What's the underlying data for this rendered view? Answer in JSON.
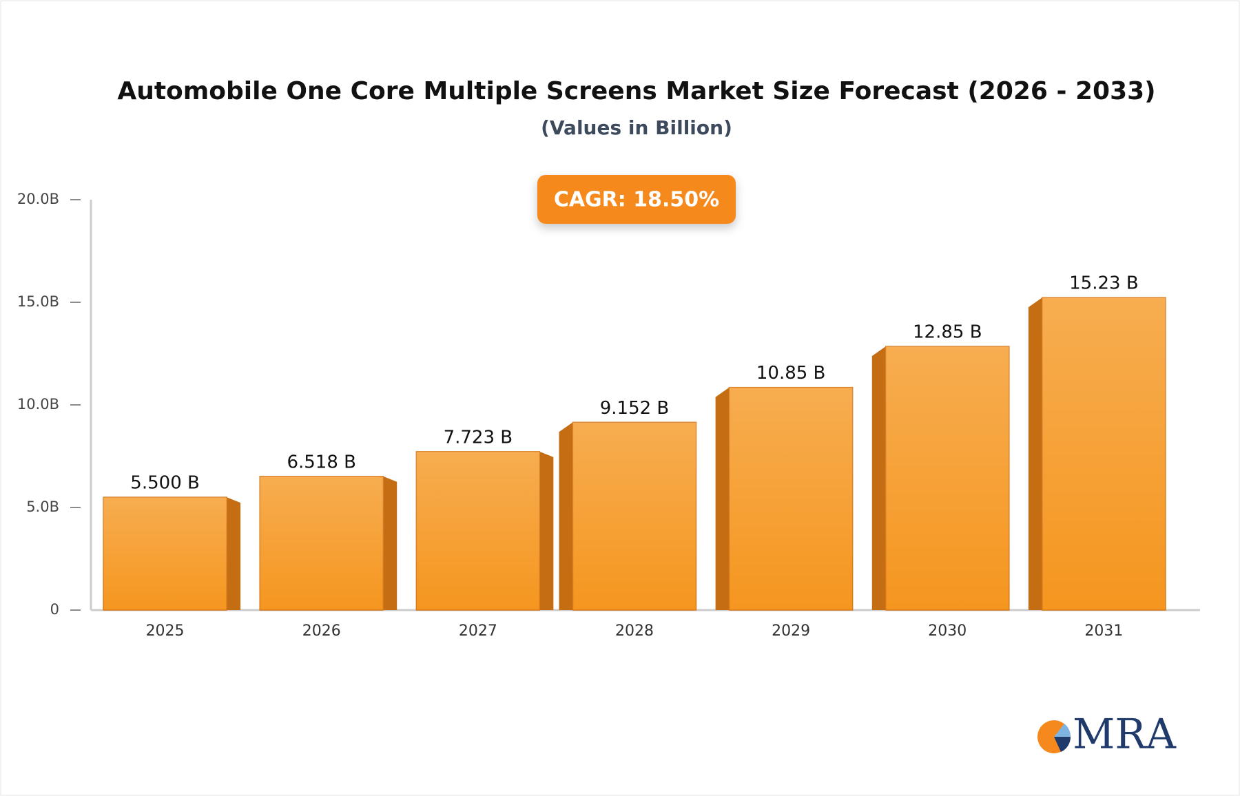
{
  "chart_data": {
    "type": "bar",
    "title": "Automobile One Core Multiple Screens Market Size Forecast (2026 - 2033)",
    "subtitle": "(Values in Billion)",
    "annotation": "CAGR: 18.50%",
    "categories": [
      "2025",
      "2026",
      "2027",
      "2028",
      "2029",
      "2030",
      "2031"
    ],
    "values": [
      5.5,
      6.518,
      7.723,
      9.152,
      10.85,
      12.85,
      15.23
    ],
    "value_labels": [
      "5.500 B",
      "6.518 B",
      "7.723 B",
      "9.152 B",
      "10.85 B",
      "12.85 B",
      "15.23 B"
    ],
    "color": "#f5961f",
    "ylim": [
      0,
      20
    ],
    "yticks": [
      0,
      {
        "value": 5,
        "label": "5.0B"
      },
      {
        "value": 10,
        "label": "10.0B"
      },
      {
        "value": 15,
        "label": "15.0B"
      },
      {
        "value": 20,
        "label": "20.0B"
      }
    ],
    "grid": false
  },
  "logo": {
    "text": "MRA"
  }
}
